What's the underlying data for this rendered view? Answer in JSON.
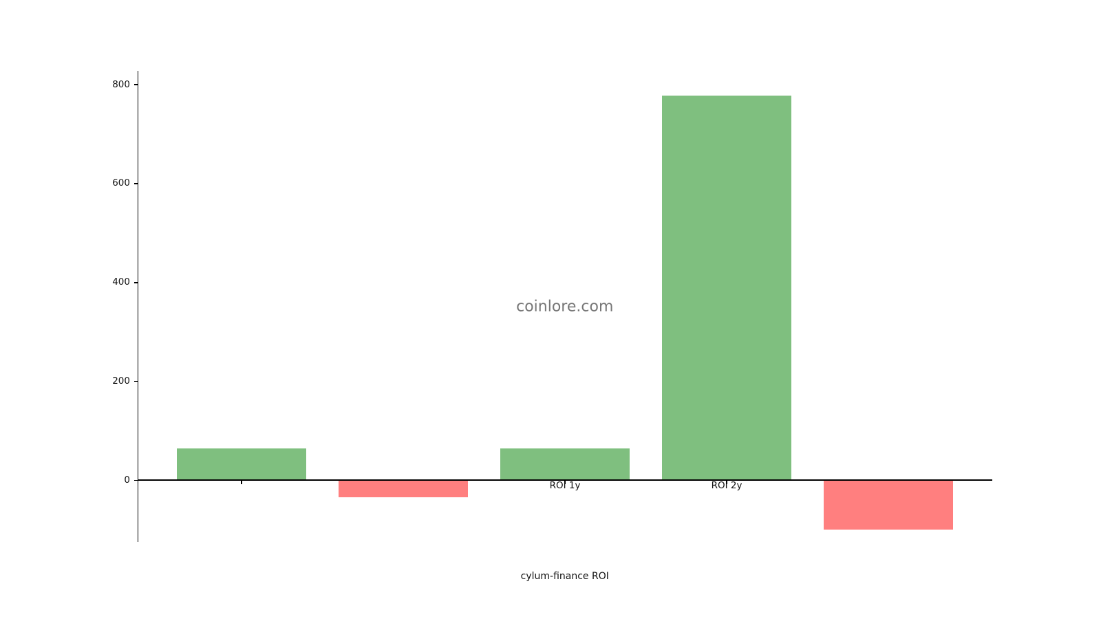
{
  "watermark": {
    "text": "coinlore.com",
    "color": "#777777"
  },
  "chart_data": {
    "type": "bar",
    "title": "cylum-finance ROI",
    "title_position": "bottom-center",
    "categories": [
      "",
      "",
      "ROI 1y",
      "ROI 2y",
      ""
    ],
    "values": [
      65,
      -34,
      65,
      778,
      -99
    ],
    "positive_color": "#7fbf7f",
    "negative_color": "#ff7f7f",
    "axis_color": "#000000",
    "ytick_labels": [
      "800",
      "600",
      "400",
      "200",
      "0"
    ],
    "yticks": [
      800,
      600,
      400,
      200,
      0
    ],
    "ylim": [
      -125,
      828
    ],
    "xlabel": "cylum-finance ROI",
    "ylabel": "",
    "grid": false,
    "legend_position": "none",
    "annotations": [
      "coinlore.com"
    ]
  }
}
